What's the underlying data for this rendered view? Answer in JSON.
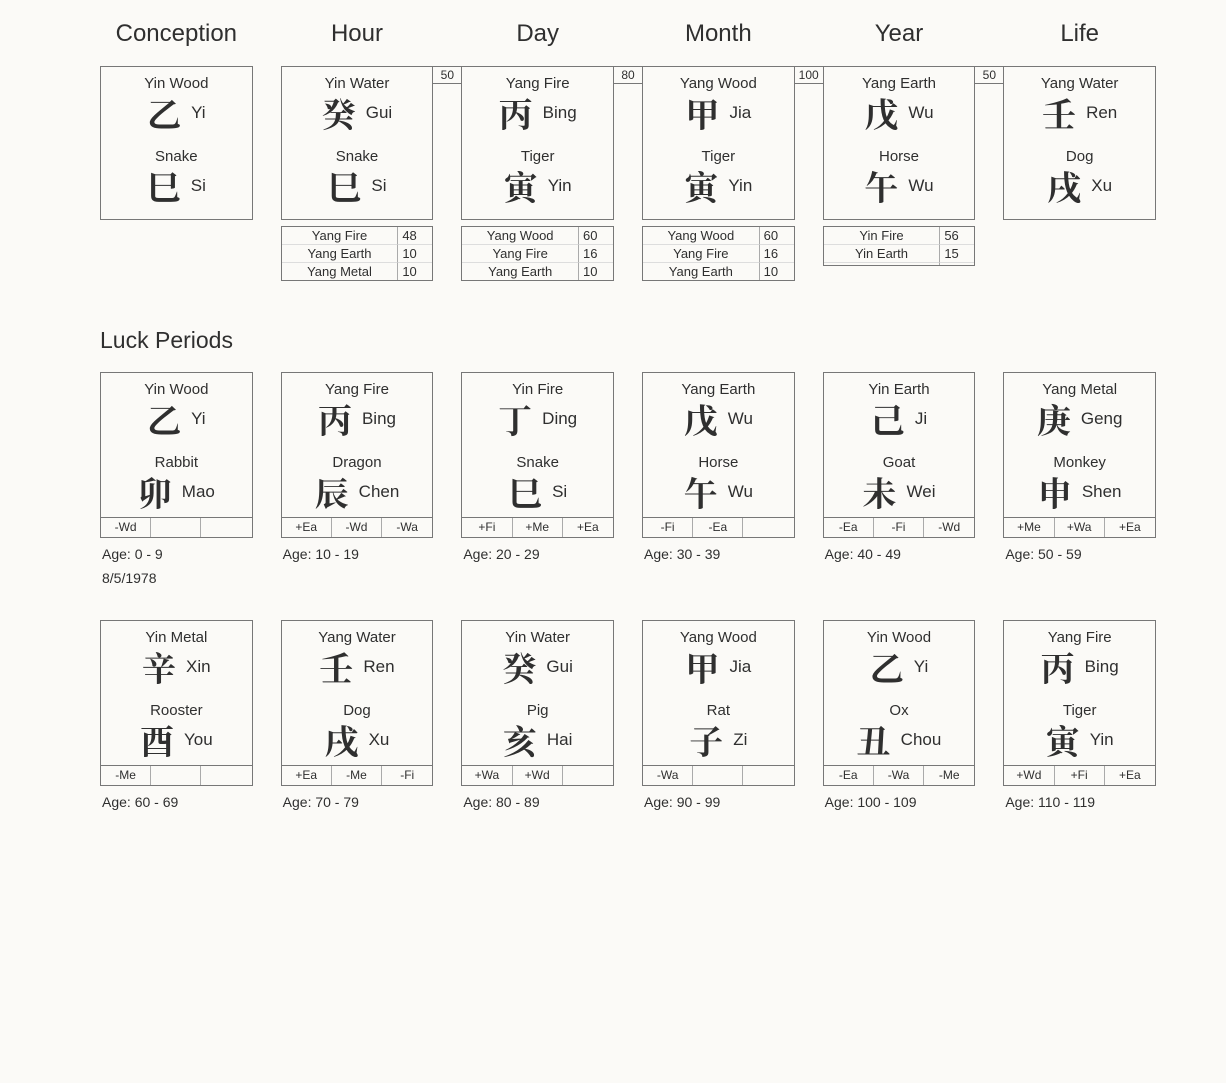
{
  "colors": {
    "background": "#fbfaf7",
    "border": "#777777",
    "text": "#2f2f2f"
  },
  "font": {
    "label_size_pt": 15,
    "header_size_pt": 24,
    "chinese_size_pt": 34
  },
  "headers": [
    "Conception",
    "Hour",
    "Day",
    "Month",
    "Year",
    "Life"
  ],
  "pillars": [
    {
      "elem": "Yin Wood",
      "stem_cn": "乙",
      "stem_py": "Yi",
      "animal": "Snake",
      "branch_cn": "巳",
      "branch_py": "Si",
      "badge": null,
      "hidden": []
    },
    {
      "elem": "Yin Water",
      "stem_cn": "癸",
      "stem_py": "Gui",
      "animal": "Snake",
      "branch_cn": "巳",
      "branch_py": "Si",
      "badge": "50",
      "hidden": [
        [
          "Yang Fire",
          "48"
        ],
        [
          "Yang Earth",
          "10"
        ],
        [
          "Yang Metal",
          "10"
        ]
      ]
    },
    {
      "elem": "Yang Fire",
      "stem_cn": "丙",
      "stem_py": "Bing",
      "animal": "Tiger",
      "branch_cn": "寅",
      "branch_py": "Yin",
      "badge": "80",
      "hidden": [
        [
          "Yang Wood",
          "60"
        ],
        [
          "Yang Fire",
          "16"
        ],
        [
          "Yang Earth",
          "10"
        ]
      ]
    },
    {
      "elem": "Yang Wood",
      "stem_cn": "甲",
      "stem_py": "Jia",
      "animal": "Tiger",
      "branch_cn": "寅",
      "branch_py": "Yin",
      "badge": "100",
      "hidden": [
        [
          "Yang Wood",
          "60"
        ],
        [
          "Yang Fire",
          "16"
        ],
        [
          "Yang Earth",
          "10"
        ]
      ]
    },
    {
      "elem": "Yang Earth",
      "stem_cn": "戊",
      "stem_py": "Wu",
      "animal": "Horse",
      "branch_cn": "午",
      "branch_py": "Wu",
      "badge": "50",
      "hidden": [
        [
          "Yin Fire",
          "56"
        ],
        [
          "Yin Earth",
          "15"
        ],
        [
          "",
          ""
        ]
      ]
    },
    {
      "elem": "Yang Water",
      "stem_cn": "壬",
      "stem_py": "Ren",
      "animal": "Dog",
      "branch_cn": "戌",
      "branch_py": "Xu",
      "badge": null,
      "hidden": []
    }
  ],
  "luck_title": "Luck Periods",
  "luck": [
    {
      "elem": "Yin Wood",
      "stem_cn": "乙",
      "stem_py": "Yi",
      "animal": "Rabbit",
      "branch_cn": "卯",
      "branch_py": "Mao",
      "tags": [
        "-Wd",
        "",
        ""
      ],
      "age": "Age: 0 - 9",
      "date": "8/5/1978"
    },
    {
      "elem": "Yang Fire",
      "stem_cn": "丙",
      "stem_py": "Bing",
      "animal": "Dragon",
      "branch_cn": "辰",
      "branch_py": "Chen",
      "tags": [
        "+Ea",
        "-Wd",
        "-Wa"
      ],
      "age": "Age: 10 - 19",
      "date": ""
    },
    {
      "elem": "Yin Fire",
      "stem_cn": "丁",
      "stem_py": "Ding",
      "animal": "Snake",
      "branch_cn": "巳",
      "branch_py": "Si",
      "tags": [
        "+Fi",
        "+Me",
        "+Ea"
      ],
      "age": "Age: 20 - 29",
      "date": ""
    },
    {
      "elem": "Yang Earth",
      "stem_cn": "戊",
      "stem_py": "Wu",
      "animal": "Horse",
      "branch_cn": "午",
      "branch_py": "Wu",
      "tags": [
        "-Fi",
        "-Ea",
        ""
      ],
      "age": "Age: 30 - 39",
      "date": ""
    },
    {
      "elem": "Yin Earth",
      "stem_cn": "己",
      "stem_py": "Ji",
      "animal": "Goat",
      "branch_cn": "未",
      "branch_py": "Wei",
      "tags": [
        "-Ea",
        "-Fi",
        "-Wd"
      ],
      "age": "Age: 40 - 49",
      "date": ""
    },
    {
      "elem": "Yang Metal",
      "stem_cn": "庚",
      "stem_py": "Geng",
      "animal": "Monkey",
      "branch_cn": "申",
      "branch_py": "Shen",
      "tags": [
        "+Me",
        "+Wa",
        "+Ea"
      ],
      "age": "Age: 50 - 59",
      "date": ""
    },
    {
      "elem": "Yin Metal",
      "stem_cn": "辛",
      "stem_py": "Xin",
      "animal": "Rooster",
      "branch_cn": "酉",
      "branch_py": "You",
      "tags": [
        "-Me",
        "",
        ""
      ],
      "age": "Age: 60 - 69",
      "date": ""
    },
    {
      "elem": "Yang Water",
      "stem_cn": "壬",
      "stem_py": "Ren",
      "animal": "Dog",
      "branch_cn": "戌",
      "branch_py": "Xu",
      "tags": [
        "+Ea",
        "-Me",
        "-Fi"
      ],
      "age": "Age: 70 - 79",
      "date": ""
    },
    {
      "elem": "Yin Water",
      "stem_cn": "癸",
      "stem_py": "Gui",
      "animal": "Pig",
      "branch_cn": "亥",
      "branch_py": "Hai",
      "tags": [
        "+Wa",
        "+Wd",
        ""
      ],
      "age": "Age: 80 - 89",
      "date": ""
    },
    {
      "elem": "Yang Wood",
      "stem_cn": "甲",
      "stem_py": "Jia",
      "animal": "Rat",
      "branch_cn": "子",
      "branch_py": "Zi",
      "tags": [
        "-Wa",
        "",
        ""
      ],
      "age": "Age: 90 - 99",
      "date": ""
    },
    {
      "elem": "Yin Wood",
      "stem_cn": "乙",
      "stem_py": "Yi",
      "animal": "Ox",
      "branch_cn": "丑",
      "branch_py": "Chou",
      "tags": [
        "-Ea",
        "-Wa",
        "-Me"
      ],
      "age": "Age: 100 - 109",
      "date": ""
    },
    {
      "elem": "Yang Fire",
      "stem_cn": "丙",
      "stem_py": "Bing",
      "animal": "Tiger",
      "branch_cn": "寅",
      "branch_py": "Yin",
      "tags": [
        "+Wd",
        "+Fi",
        "+Ea"
      ],
      "age": "Age: 110 - 119",
      "date": ""
    }
  ]
}
